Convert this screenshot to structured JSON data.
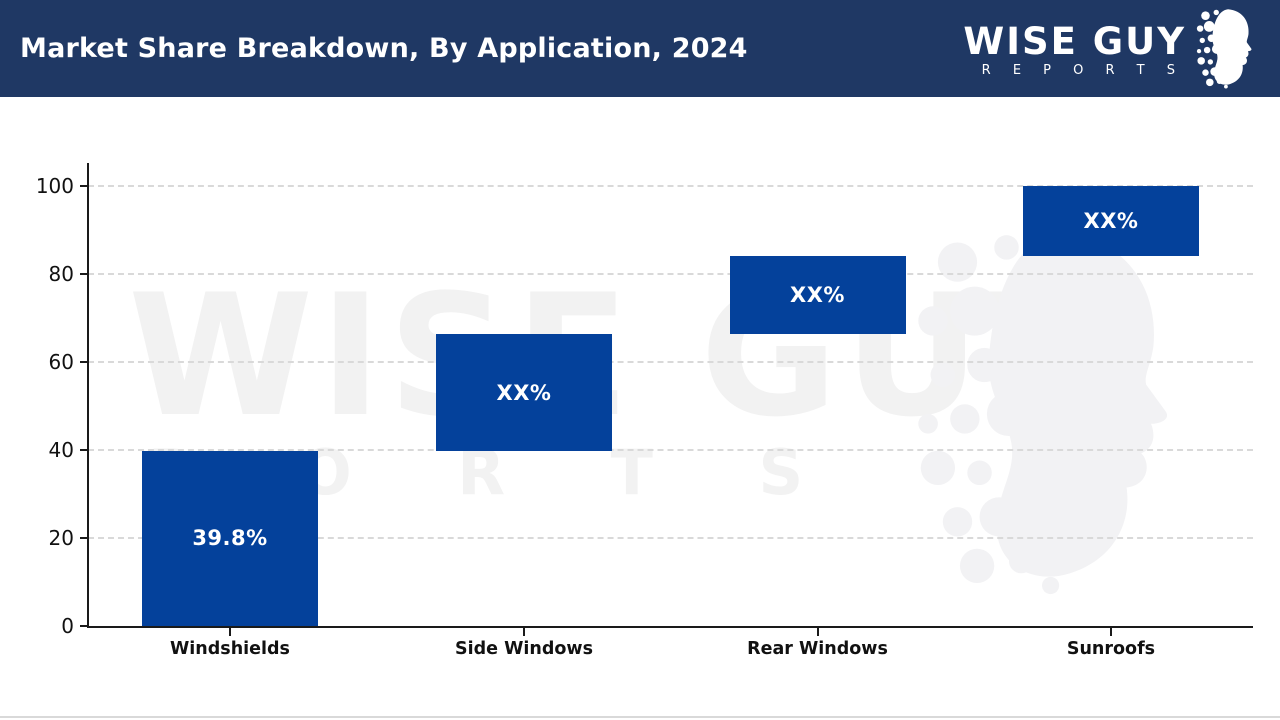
{
  "header": {
    "title": "Market Share Breakdown, By Application, 2024",
    "bg_color": "#1f3864",
    "logo": {
      "line1": "WISE GUY",
      "line2": "R E P O R T S",
      "icon": "dotted-head-profile-icon"
    }
  },
  "watermark": {
    "line1": "WISE GUY",
    "line2": "P O R T S",
    "icon": "dotted-head-profile-watermark",
    "color": "#f2f2f2"
  },
  "chart_data": {
    "type": "bar",
    "subtype": "waterfall-floating-bars",
    "title": "Market Share Breakdown, By Application, 2024",
    "categories": [
      "Windshields",
      "Side Windows",
      "Rear Windows",
      "Sunroofs"
    ],
    "segments": [
      [
        0,
        39.8
      ],
      [
        39.8,
        66.3
      ],
      [
        66.3,
        84
      ],
      [
        84,
        100
      ]
    ],
    "values": [
      39.8,
      26.5,
      17.7,
      16.0
    ],
    "bar_labels": [
      "39.8%",
      "XX%",
      "XX%",
      "XX%"
    ],
    "yticks": [
      0,
      20,
      40,
      60,
      80,
      100
    ],
    "ytick_labels": [
      "0",
      "20",
      "40",
      "60",
      "80",
      "100"
    ],
    "ylim": [
      0,
      105
    ],
    "xlabel": "",
    "ylabel": "",
    "grid": "horizontal-dashed",
    "legend": "none",
    "bar_color": "#04419b",
    "grid_color": "#d9d9d9",
    "axis_color": "#1a1a1a"
  }
}
